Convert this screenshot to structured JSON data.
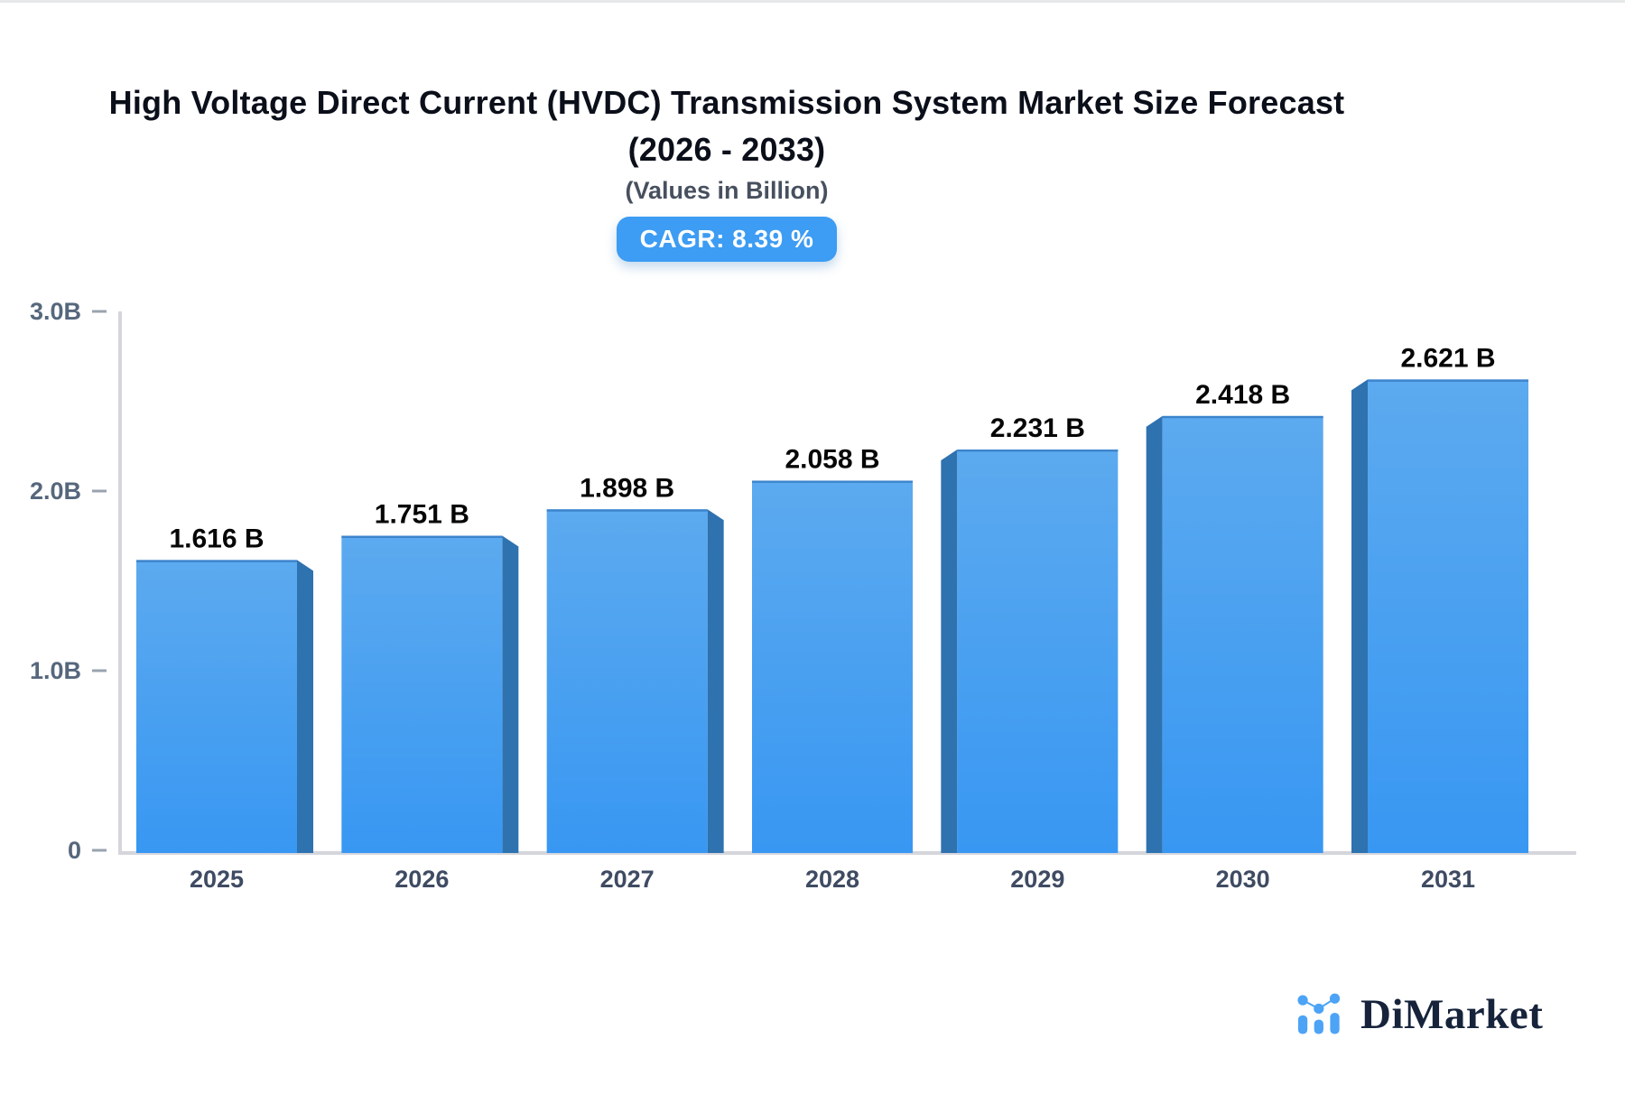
{
  "header": {
    "title_line1": "High Voltage Direct Current (HVDC) Transmission System Market Size Forecast",
    "title_line2": "(2026 - 2033)",
    "subtitle": "(Values in Billion)",
    "cagr_badge": "CAGR: 8.39 %"
  },
  "chart_data": {
    "type": "bar",
    "title": "High Voltage Direct Current (HVDC) Transmission System Market Size Forecast (2026 - 2033)",
    "subtitle": "(Values in Billion)",
    "cagr": "8.39 %",
    "categories": [
      "2025",
      "2026",
      "2027",
      "2028",
      "2029",
      "2030",
      "2031"
    ],
    "values": [
      1.616,
      1.751,
      1.898,
      2.058,
      2.231,
      2.418,
      2.621
    ],
    "bar_labels": [
      "1.616 B",
      "1.751 B",
      "1.898 B",
      "2.058 B",
      "2.231 B",
      "2.418 B",
      "2.621 B"
    ],
    "xlabel": "",
    "ylabel": "",
    "ylim": [
      0,
      3
    ],
    "yticks": [
      {
        "label": "0",
        "value": 0
      },
      {
        "label": "1.0B",
        "value": 1
      },
      {
        "label": "2.0B",
        "value": 2
      },
      {
        "label": "3.0B",
        "value": 3
      }
    ],
    "grid": false,
    "legend": false,
    "style": "3d-bars",
    "colors": {
      "bar_top": "#5caaef",
      "bar_bottom": "#3897f2",
      "bar_side": "#2e72af",
      "bar_top_edge": "#3d84cc",
      "axis": "#d4d6dc",
      "tick": "#9aa3af",
      "tick_label": "#56677c",
      "x_label": "#3f4b63",
      "value_label": "#060606",
      "badge_bg": "#3d9cf3",
      "badge_text": "#ffffff"
    }
  },
  "footer": {
    "brand": "DiMarket",
    "brand_icon": "bar-line-chart-icon",
    "brand_color": "#4da3f5"
  }
}
